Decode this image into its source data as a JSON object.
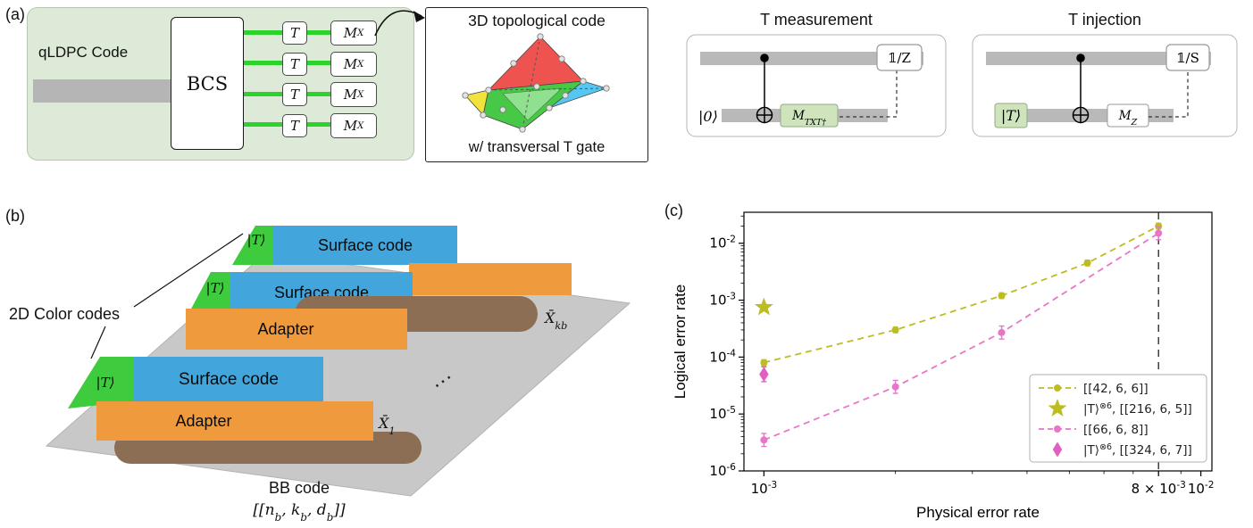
{
  "panel_a": {
    "label": "(a)",
    "qldpc_label": "qLDPC Code",
    "bcs_label": "BCS",
    "t_gate_label": "T",
    "mx_label": "M_{X}",
    "topo_title": "3D topological code",
    "topo_caption": "w/ transversal T gate"
  },
  "circuits": {
    "measurement": {
      "title": "T measurement",
      "ancilla_ket": "|0⟩",
      "meter_label": "M_{TXT†}",
      "byproduct_label": "𝟙/Z"
    },
    "injection": {
      "title": "T injection",
      "resource_ket": "|T⟩",
      "meter_label": "M_{Z}",
      "byproduct_label": "𝟙/S"
    }
  },
  "panel_b": {
    "label": "(b)",
    "color_codes_label": "2D Color codes",
    "t_ket": "|T⟩",
    "surface_code_label": "Surface code",
    "adapter_label": "Adapter",
    "bb_code_label": "BB code",
    "bb_params": "[[n_{b}, k_{b}, d_{b}]]",
    "logical_x_first": "X̄_{1}",
    "logical_x_last": "X̄_{kb}",
    "dots": "···"
  },
  "panel_c": {
    "label": "(c)"
  },
  "chart_data": {
    "type": "line",
    "title": "",
    "xlabel": "Physical error rate",
    "ylabel": "Logical error rate",
    "xscale": "log",
    "yscale": "log",
    "xlim": [
      0.0009,
      0.0106
    ],
    "ylim": [
      1e-06,
      0.035
    ],
    "grid": false,
    "legend_position": "lower right",
    "x_ticks": [
      {
        "v": 0.001,
        "label": "10^{-3}"
      },
      {
        "v": 0.008,
        "label": "8 × 10^{-3}"
      },
      {
        "v": 0.01,
        "label": "10^{-2}"
      }
    ],
    "y_ticks": [
      {
        "v": 0.01,
        "label": "10^{-2}"
      },
      {
        "v": 0.001,
        "label": "10^{-3}"
      },
      {
        "v": 0.0001,
        "label": "10^{-4}"
      },
      {
        "v": 1e-05,
        "label": "10^{-5}"
      },
      {
        "v": 1e-06,
        "label": "10^{-6}"
      }
    ],
    "vline": {
      "x": 0.008,
      "style": "dashed",
      "color": "#222222"
    },
    "series": [
      {
        "name": "[[42, 6, 6]]",
        "color": "#bcbd22",
        "marker": "circle",
        "line": "dashed",
        "x": [
          0.001,
          0.002,
          0.0035,
          0.0055,
          0.008
        ],
        "y": [
          8e-05,
          0.0003,
          0.0012,
          0.0045,
          0.02
        ],
        "yerr_rel": 0.12
      },
      {
        "name": "|T⟩^{⊗6}, [[216, 6, 5]]",
        "color": "#bcbd22",
        "marker": "star",
        "line": "none",
        "x": [
          0.001
        ],
        "y": [
          0.00075
        ],
        "yerr_rel": 0
      },
      {
        "name": "[[66, 6, 8]]",
        "color": "#e876c8",
        "marker": "circle",
        "line": "dashed",
        "x": [
          0.001,
          0.002,
          0.0035,
          0.008
        ],
        "y": [
          3.5e-06,
          3e-05,
          0.00027,
          0.015
        ],
        "yerr_rel": 0.3
      },
      {
        "name": "|T⟩^{⊗6}, [[324, 6, 7]]",
        "color": "#e25fc2",
        "marker": "diamond",
        "line": "none",
        "x": [
          0.001
        ],
        "y": [
          5e-05
        ],
        "yerr_rel": 0.35
      }
    ]
  },
  "colors": {
    "wire_green": "#2bd42b",
    "panel_green_bg": "#dcead7",
    "surface_blue": "#42a6dc",
    "adapter_orange": "#f09a3e",
    "color_code_green": "#3ecb3e",
    "bb_plate_gray": "#c8c8c8",
    "logical_bar_brown": "#8c6e55",
    "olive_series": "#bcbd22",
    "pink_series": "#e876c8"
  }
}
